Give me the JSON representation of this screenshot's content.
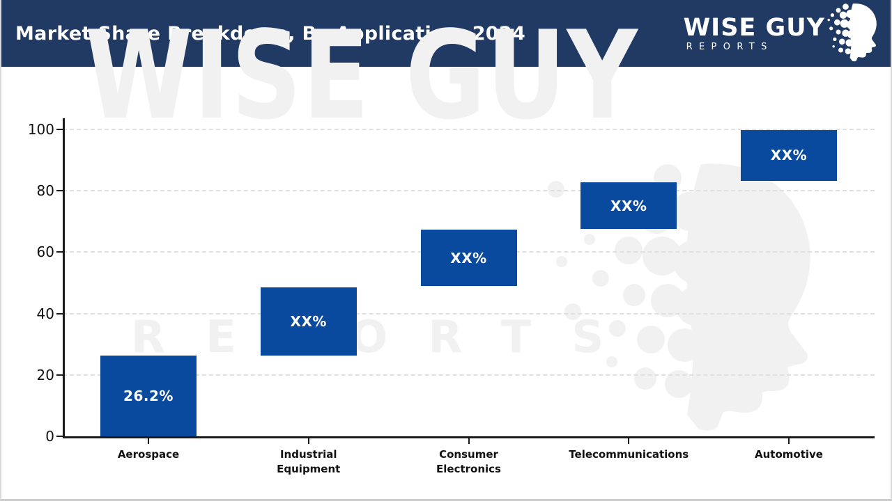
{
  "header": {
    "title": "Market Share Breakdown, By Application, 2024",
    "logo": {
      "line1": "WISE GUY",
      "line2": "REPORTS"
    }
  },
  "watermark": {
    "line1": "WISE GUY",
    "line2": "REPORTS"
  },
  "colors": {
    "header_bg": "#203a64",
    "bar": "#0a4a9e",
    "grid": "#e0e0e0",
    "axis": "#1a1a1a",
    "watermark": "#f1f1f2",
    "value_label": "#ffffff"
  },
  "chart_data": {
    "type": "bar",
    "subtype": "waterfall-floating-segments",
    "title": "Market Share Breakdown, By Application, 2024",
    "xlabel": "",
    "ylabel": "",
    "ylim": [
      0,
      104
    ],
    "grid": "dashed-horizontal",
    "legend": "none",
    "categories": [
      "Aerospace",
      "Industrial Equipment",
      "Consumer Electronics",
      "Telecommunications",
      "Automotive"
    ],
    "y_ticks": [
      0,
      20,
      40,
      60,
      80,
      100
    ],
    "segments": [
      {
        "category": "Aerospace",
        "label_lines": [
          "Aerospace"
        ],
        "start": 0,
        "end": 26.2,
        "value_label": "26.2%"
      },
      {
        "category": "Industrial Equipment",
        "label_lines": [
          "Industrial",
          "Equipment"
        ],
        "start": 26.2,
        "end": 48.6,
        "value_label": "XX%"
      },
      {
        "category": "Consumer Electronics",
        "label_lines": [
          "Consumer",
          "Electronics"
        ],
        "start": 48.9,
        "end": 67.3,
        "value_label": "XX%"
      },
      {
        "category": "Telecommunications",
        "label_lines": [
          "Telecommunications"
        ],
        "start": 67.5,
        "end": 82.8,
        "value_label": "XX%"
      },
      {
        "category": "Automotive",
        "label_lines": [
          "Automotive"
        ],
        "start": 83.2,
        "end": 99.8,
        "value_label": "XX%"
      }
    ]
  }
}
